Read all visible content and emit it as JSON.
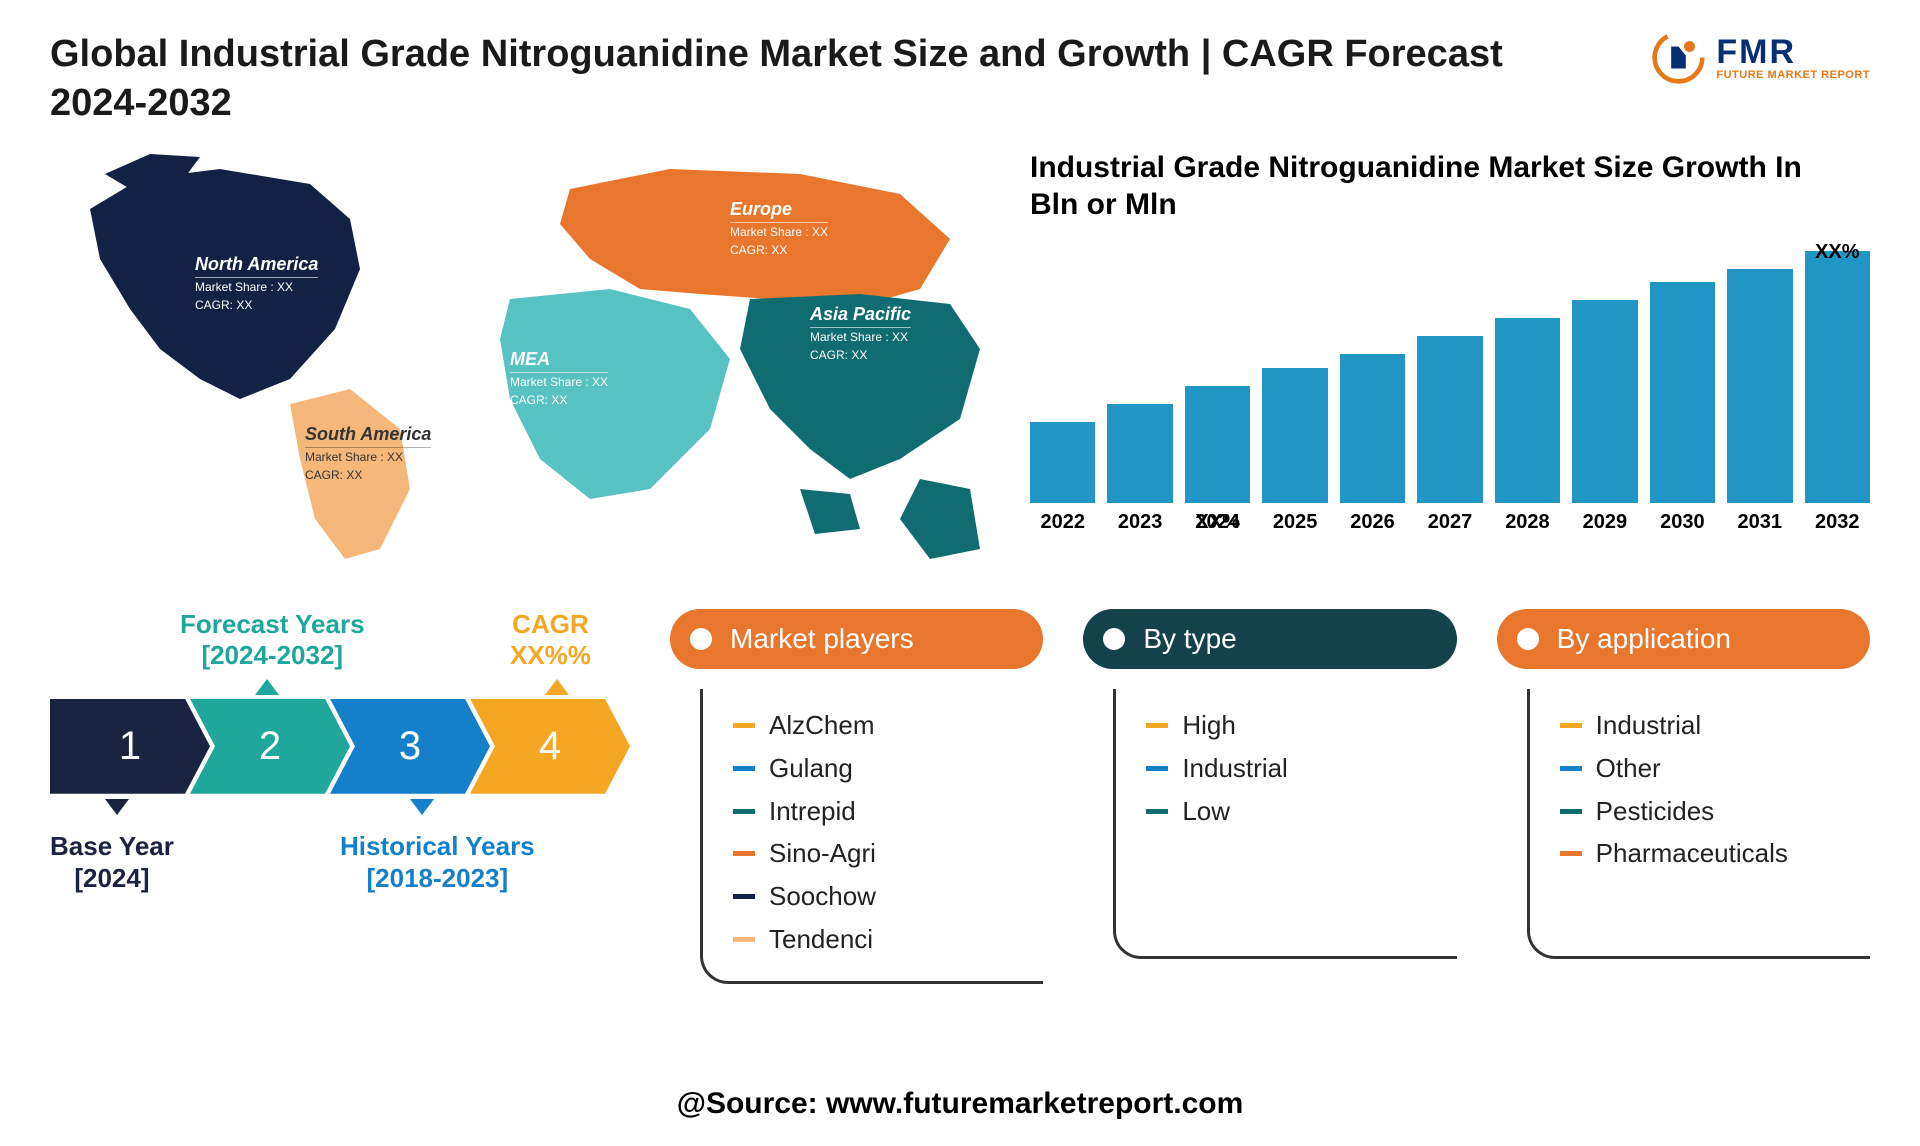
{
  "title": "Global Industrial Grade Nitroguanidine  Market Size and Growth | CAGR Forecast 2024-2032",
  "logo": {
    "fmr": "FMR",
    "sub": "FUTURE MARKET REPORT"
  },
  "map": {
    "regions": {
      "na": {
        "name": "North America",
        "share": "Market Share : XX",
        "cagr": "CAGR: XX",
        "color": "#132144"
      },
      "sa": {
        "name": "South America",
        "share": "Market Share : XX",
        "cagr": "CAGR: XX",
        "color": "#f6b77a"
      },
      "eu": {
        "name": "Europe",
        "share": "Market Share : XX",
        "cagr": "CAGR: XX",
        "color": "#e8762c"
      },
      "mea": {
        "name": "MEA",
        "share": "Market Share : XX",
        "cagr": "CAGR: XX",
        "color": "#56c2c2"
      },
      "apac": {
        "name": "Asia Pacific",
        "share": "Market Share : XX",
        "cagr": "CAGR: XX",
        "color": "#0f6d72"
      }
    }
  },
  "chart": {
    "title": "Industrial Grade Nitroguanidine Market Size Growth In\nBln or Mln",
    "type": "bar",
    "categories": [
      "2022",
      "2023",
      "2024",
      "2025",
      "2026",
      "2027",
      "2028",
      "2029",
      "2030",
      "2031",
      "2032"
    ],
    "values": [
      90,
      110,
      130,
      150,
      165,
      185,
      205,
      225,
      245,
      260,
      280
    ],
    "max": 300,
    "bar_color": "#2196c4",
    "annotations": {
      "2024": "XX%",
      "2032": "XX%"
    },
    "label_fontsize": 20,
    "title_fontsize": 30
  },
  "years": {
    "forecast": {
      "label": "Forecast Years",
      "range": "[2024-2032]",
      "color": "#1ea79a"
    },
    "cagr": {
      "label": "CAGR",
      "range": "XX%%",
      "color": "#f5a623"
    },
    "base": {
      "label": "Base Year",
      "range": "[2024]",
      "color": "#1a2340"
    },
    "hist": {
      "label": "Historical Years",
      "range": "[2018-2023]",
      "color": "#1380c9"
    },
    "chevrons": [
      {
        "n": "1",
        "color": "#1a2340"
      },
      {
        "n": "2",
        "color": "#1ea79a"
      },
      {
        "n": "3",
        "color": "#1380c9"
      },
      {
        "n": "4",
        "color": "#f5a623"
      }
    ]
  },
  "categories": [
    {
      "title": "Market players",
      "header_color": "#e8762c",
      "items": [
        "AlzChem",
        "Gulang",
        "Intrepid",
        "Sino-Agri",
        "Soochow",
        "Tendenci"
      ],
      "dash_colors": [
        "#f5a623",
        "#1380c9",
        "#0f6d72",
        "#e8762c",
        "#132144",
        "#f6b77a"
      ]
    },
    {
      "title": "By type",
      "header_color": "#14424a",
      "items": [
        "High",
        "Industrial",
        "Low"
      ],
      "dash_colors": [
        "#f5a623",
        "#1380c9",
        "#0f6d72"
      ]
    },
    {
      "title": "By application",
      "header_color": "#e8762c",
      "items": [
        "Industrial",
        "Other",
        "Pesticides",
        "Pharmaceuticals"
      ],
      "dash_colors": [
        "#f5a623",
        "#1380c9",
        "#0f6d72",
        "#e8762c"
      ]
    }
  ],
  "source": "@Source: www.futuremarketreport.com"
}
